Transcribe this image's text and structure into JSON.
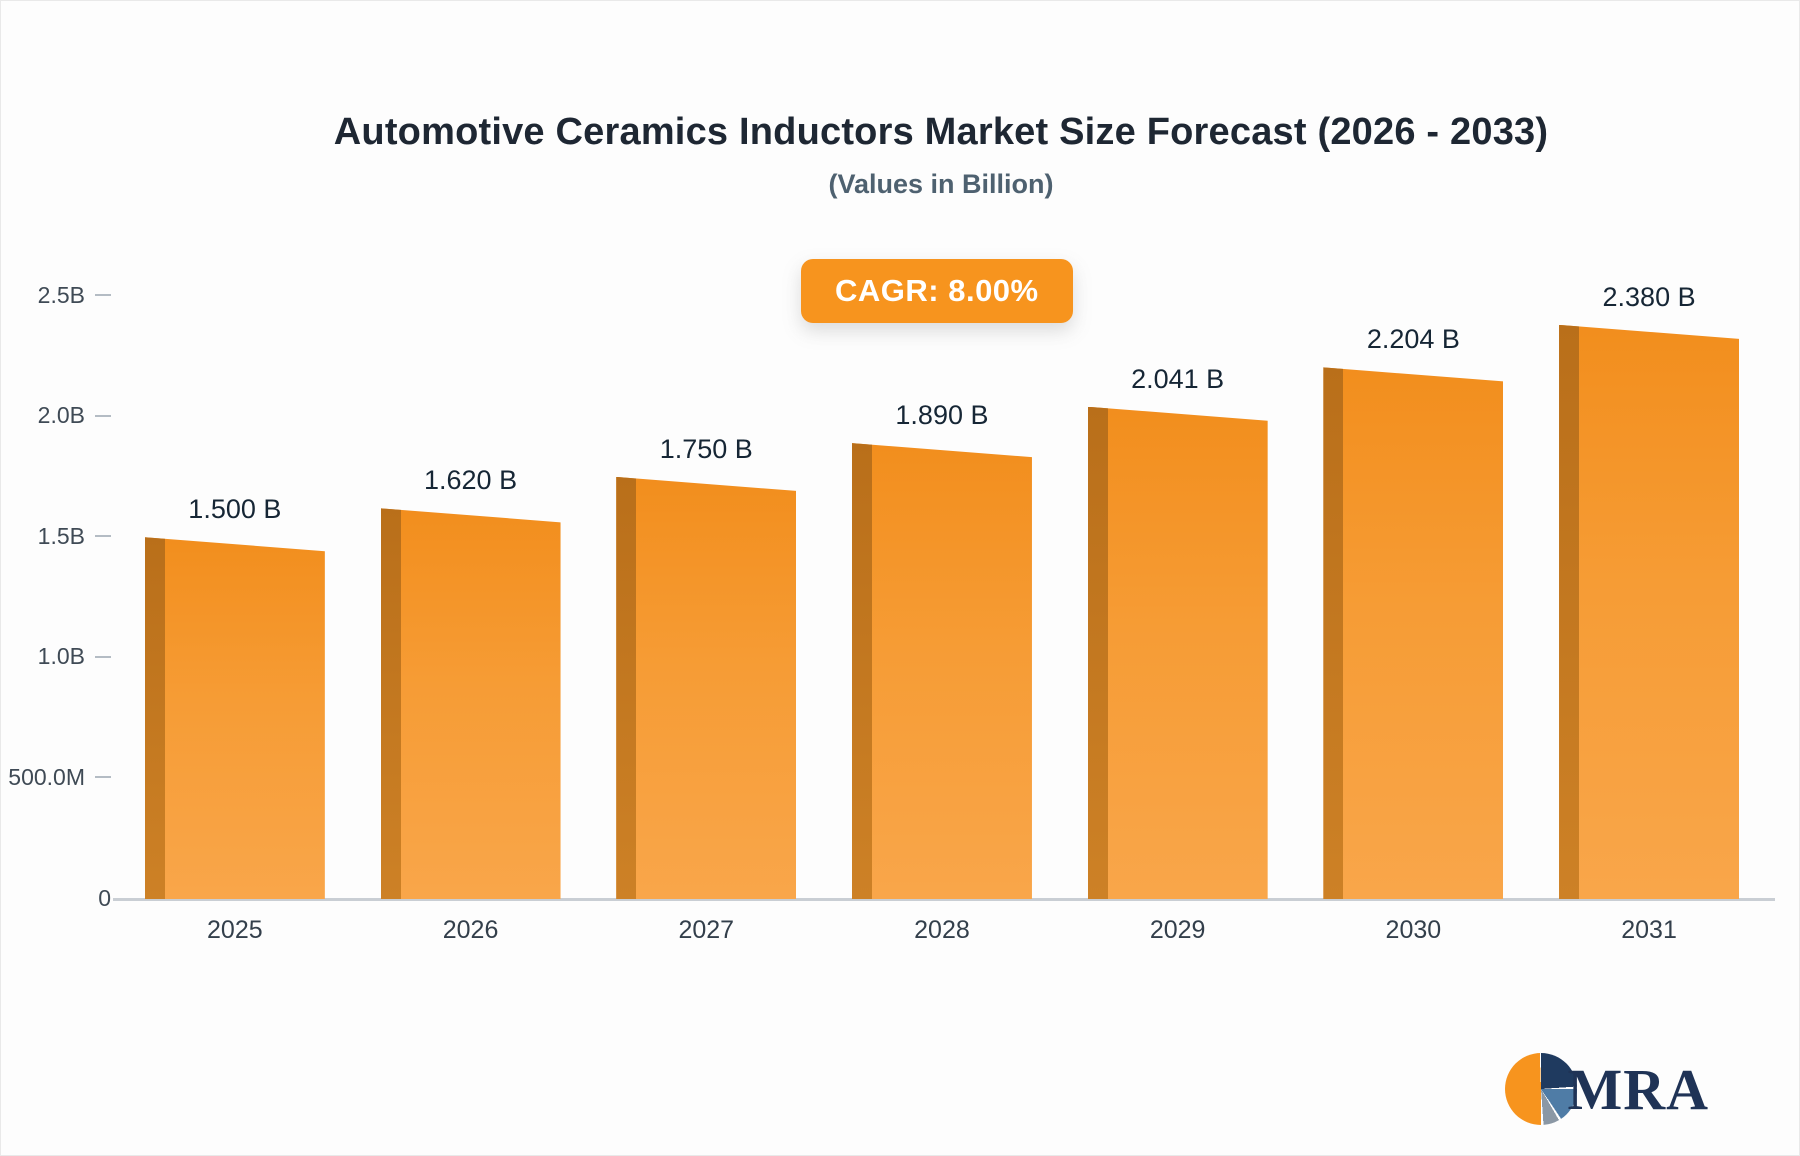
{
  "chart_data": {
    "type": "bar",
    "title": "Automotive Ceramics Inductors Market Size Forecast (2026 - 2033)",
    "subtitle": "(Values in Billion)",
    "badge": "CAGR: 8.00%",
    "categories": [
      "2025",
      "2026",
      "2027",
      "2028",
      "2029",
      "2030",
      "2031"
    ],
    "values": [
      1.5,
      1.62,
      1.75,
      1.89,
      2.041,
      2.204,
      2.38
    ],
    "value_labels": [
      "1.500 B",
      "1.620 B",
      "1.750 B",
      "1.890 B",
      "2.041 B",
      "2.204 B",
      "2.380 B"
    ],
    "y_ticks": [
      {
        "label": "2.5B",
        "value": 2.5
      },
      {
        "label": "2.0B",
        "value": 2.0
      },
      {
        "label": "1.5B",
        "value": 1.5
      },
      {
        "label": "1.0B",
        "value": 1.0
      },
      {
        "label": "500.0M",
        "value": 0.5
      },
      {
        "label": "0",
        "value": 0
      }
    ],
    "ylim": [
      0,
      2.5
    ],
    "xlabel": "",
    "ylabel": "",
    "grid": false,
    "legend_position": "none",
    "bar_color": "#F7941E",
    "bar_side_color": "#C97A1E",
    "badge_color": "#F7941E"
  },
  "logo": {
    "text": "MRA"
  }
}
